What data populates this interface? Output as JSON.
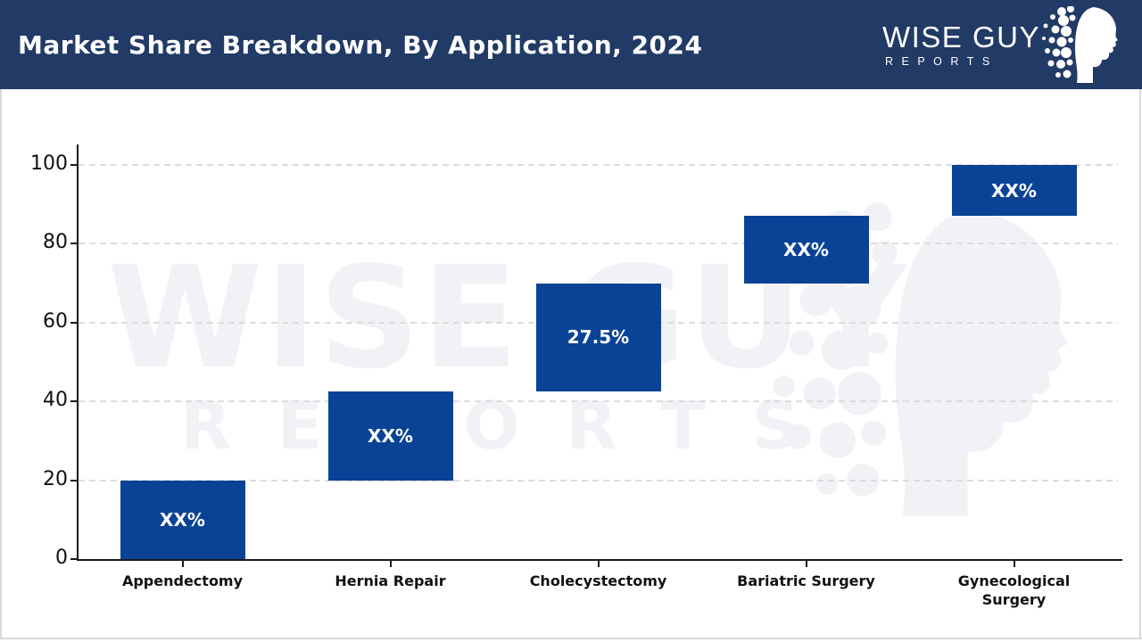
{
  "header": {
    "title": "Market Share Breakdown, By Application, 2024",
    "logo_line1": "WISE GUY",
    "logo_line2": "REPORTS",
    "bg_color": "#213A66"
  },
  "watermark": {
    "line1": "WISE GUY",
    "line2": "REPORTS"
  },
  "chart_data": {
    "type": "bar",
    "variant": "waterfall",
    "title": "Market Share Breakdown, By Application, 2024",
    "categories": [
      "Appendectomy",
      "Hernia Repair",
      "Cholecystectomy",
      "Bariatric Surgery",
      "Gynecological Surgery"
    ],
    "segments": [
      {
        "category": "Appendectomy",
        "start": 0,
        "end": 20,
        "label": "XX%"
      },
      {
        "category": "Hernia Repair",
        "start": 20,
        "end": 42.5,
        "label": "XX%"
      },
      {
        "category": "Cholecystectomy",
        "start": 42.5,
        "end": 70,
        "label": "27.5%"
      },
      {
        "category": "Bariatric Surgery",
        "start": 70,
        "end": 87,
        "label": "XX%"
      },
      {
        "category": "Gynecological Surgery",
        "start": 87,
        "end": 100,
        "label": "XX%"
      }
    ],
    "values": [
      20,
      22.5,
      27.5,
      17,
      13
    ],
    "xlabel": "",
    "ylabel": "",
    "ylim": [
      0,
      100
    ],
    "yticks": [
      0,
      20,
      40,
      60,
      80,
      100
    ],
    "grid": {
      "axis": "y",
      "style": "dashed",
      "color": "#dcdcdc"
    },
    "legend": null,
    "bar_color": "#0A4396",
    "bar_label_color": "#ffffff"
  }
}
